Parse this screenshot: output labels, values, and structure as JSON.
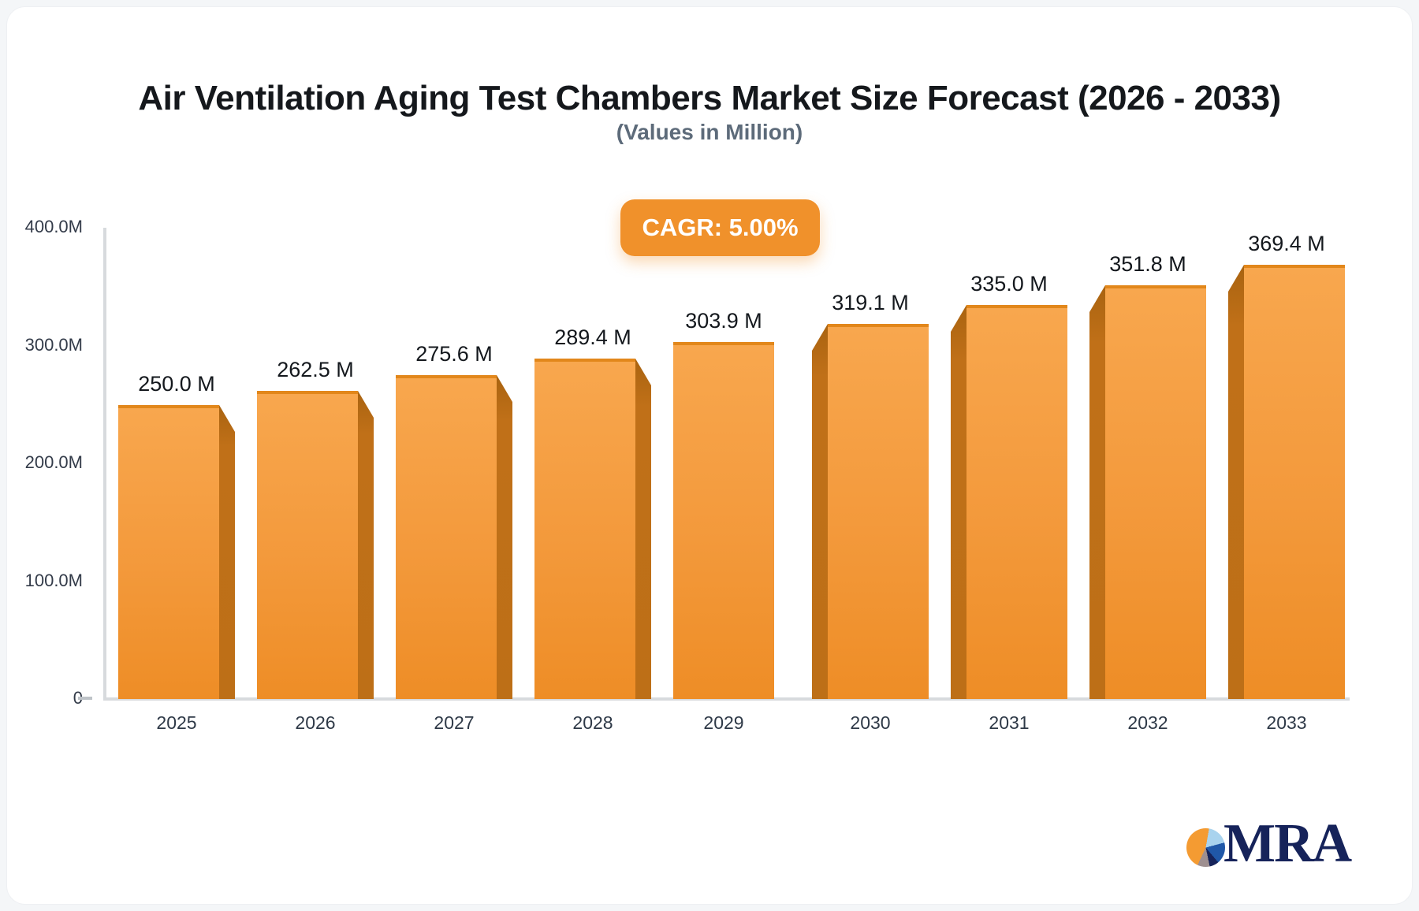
{
  "page": {
    "page_background": "#f4f6f8",
    "card_background": "#ffffff"
  },
  "header": {
    "title": "Air Ventilation Aging Test Chambers Market Size Forecast (2026 - 2033)",
    "subtitle": "(Values in Million)"
  },
  "badge": {
    "label": "CAGR: 5.00%",
    "background": "#f0912b",
    "text_color": "#ffffff"
  },
  "chart_data": {
    "type": "bar",
    "title": "Air Ventilation Aging Test Chambers Market Size Forecast (2026 - 2033)",
    "subtitle": "(Values in Million)",
    "categories": [
      "2025",
      "2026",
      "2027",
      "2028",
      "2029",
      "2030",
      "2031",
      "2032",
      "2033"
    ],
    "values": [
      250.0,
      262.5,
      275.6,
      289.4,
      303.9,
      319.1,
      335.0,
      351.8,
      369.4
    ],
    "value_labels": [
      "250.0 M",
      "262.5 M",
      "275.6 M",
      "289.4 M",
      "303.9 M",
      "319.1 M",
      "335.0 M",
      "351.8 M",
      "369.4 M"
    ],
    "cagr_label": "CAGR: 5.00%",
    "xlabel": "",
    "ylabel": "",
    "ylim": [
      0,
      400
    ],
    "y_ticks": [
      {
        "label": "400.0M",
        "value": 400
      },
      {
        "label": "300.0M",
        "value": 300
      },
      {
        "label": "200.0M",
        "value": 200
      },
      {
        "label": "100.0M",
        "value": 100
      },
      {
        "label": "0",
        "value": 0
      }
    ],
    "grid": false,
    "legend": false,
    "bar_3d_side": [
      "right",
      "right",
      "right",
      "right",
      "none",
      "left",
      "left",
      "left",
      "left"
    ],
    "colors": {
      "bar_face_top": "#f8a74e",
      "bar_face_bottom": "#ee8d26",
      "bar_top_edge": "#e2871b",
      "bar_side": "#c07018",
      "axis": "#d7dadd",
      "tick_label": "#333b49",
      "value_label": "#14181d",
      "badge": "#f0912b"
    }
  },
  "logo": {
    "text": "MRA",
    "text_color": "#16235a",
    "pie_slice_colors": [
      "#f49b32",
      "#a9d3ee",
      "#2058a8",
      "#16235a",
      "#9e8f90"
    ]
  }
}
